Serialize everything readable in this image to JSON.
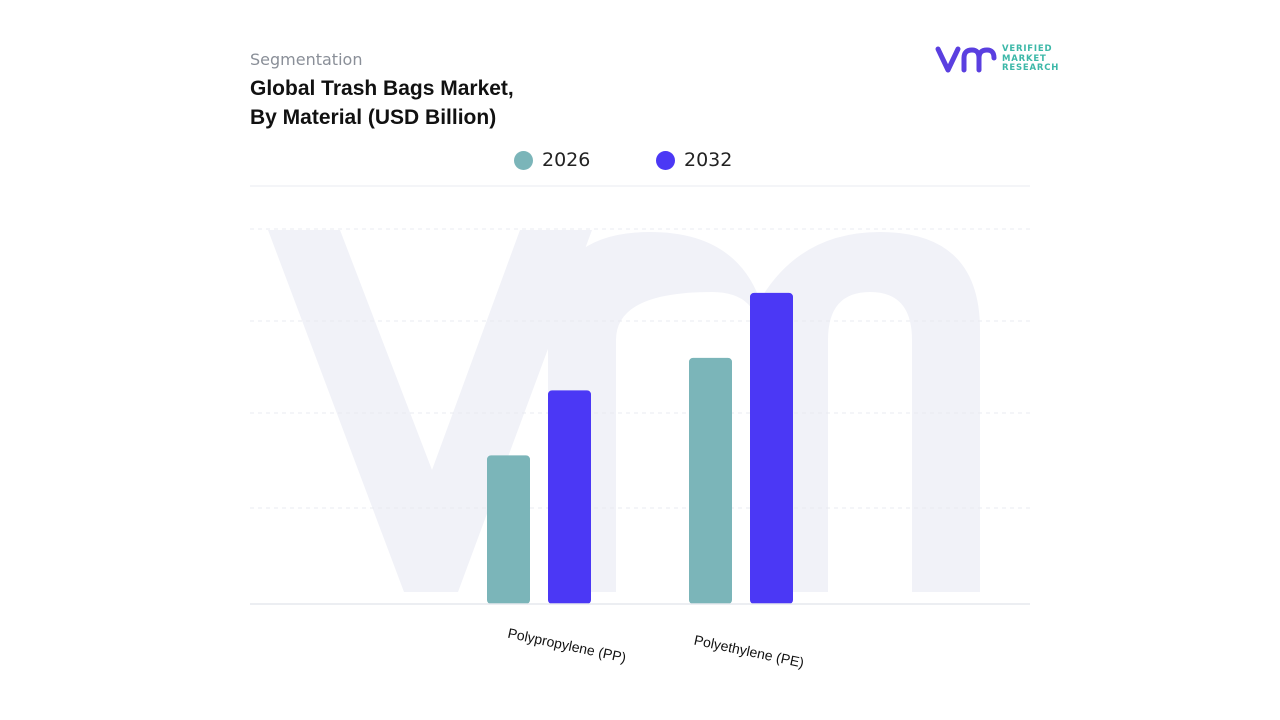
{
  "header": {
    "kicker": "Segmentation",
    "title_line1": "Global Trash Bags Market,",
    "title_line2": "By Material (USD Billion)"
  },
  "logo": {
    "mark": "vmr",
    "line1": "VERIFIED",
    "line2": "MARKET",
    "line3": "RESEARCH"
  },
  "colors": {
    "series_2026": "#7bb5b9",
    "series_2032": "#4b38f5",
    "logo_mark": "#5a3fe0",
    "logo_text": "#3cb8a8",
    "watermark": "#f1f2f8"
  },
  "chart_data": {
    "type": "bar",
    "title": "Global Trash Bags Market, By Material (USD Billion)",
    "categories": [
      "Polypropylene (PP)",
      "Polyethylene (PE)"
    ],
    "series": [
      {
        "name": "2026",
        "values": [
          3.2,
          5.3
        ]
      },
      {
        "name": "2032",
        "values": [
          4.6,
          6.7
        ]
      }
    ],
    "ylim": [
      0,
      9
    ],
    "grid": true,
    "legend": "top-center",
    "xlabel": "",
    "ylabel": ""
  }
}
